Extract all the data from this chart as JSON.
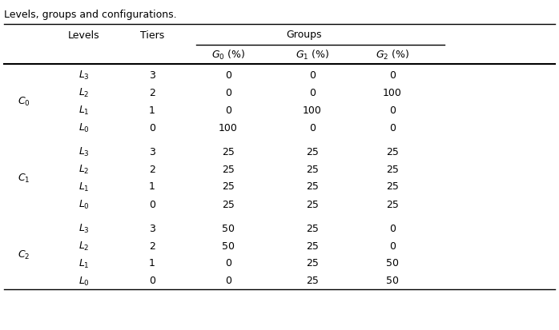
{
  "title_text": "Levels, groups and configurations.",
  "col_headers": [
    "",
    "Levels",
    "Tiers",
    "Groups",
    "",
    ""
  ],
  "sub_headers": [
    "",
    "",
    "",
    "$G_0$ (%)",
    "$G_1$ (%)",
    "$G_2$ (%)"
  ],
  "config_col": [
    "$C_0$",
    "",
    "",
    "",
    "",
    "$C_1$",
    "",
    "",
    "",
    "",
    "$C_2$",
    "",
    "",
    ""
  ],
  "levels_col": [
    "$L_3$",
    "$L_2$",
    "$L_1$",
    "$L_0$",
    "",
    "$L_3$",
    "$L_2$",
    "$L_1$",
    "$L_0$",
    "",
    "$L_3$",
    "$L_2$",
    "$L_1$",
    "$L_0$"
  ],
  "tiers_col": [
    "3",
    "2",
    "1",
    "0",
    "",
    "3",
    "2",
    "1",
    "0",
    "",
    "3",
    "2",
    "1",
    "0"
  ],
  "g0_col": [
    "0",
    "0",
    "0",
    "100",
    "",
    "25",
    "25",
    "25",
    "25",
    "",
    "50",
    "50",
    "0",
    "0"
  ],
  "g1_col": [
    "0",
    "0",
    "100",
    "0",
    "",
    "25",
    "25",
    "25",
    "25",
    "",
    "25",
    "25",
    "25",
    "25"
  ],
  "g2_col": [
    "0",
    "100",
    "0",
    "0",
    "",
    "25",
    "25",
    "25",
    "25",
    "",
    "0",
    "0",
    "50",
    "50"
  ],
  "font_size": 9,
  "bg_color": "#ffffff"
}
